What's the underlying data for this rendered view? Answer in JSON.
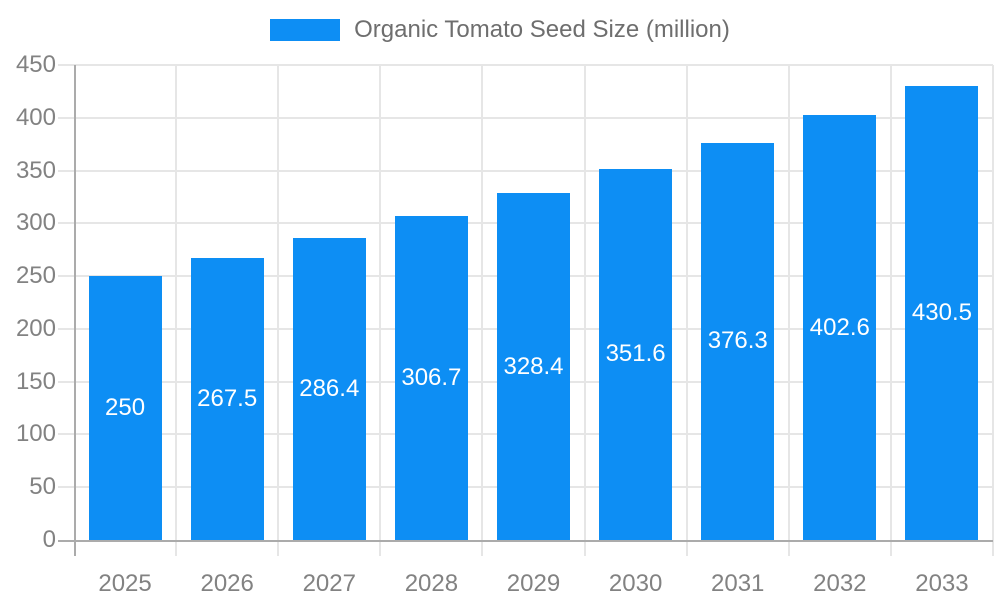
{
  "chart_data": {
    "type": "bar",
    "title": "Organic Tomato Seed Size (million)",
    "categories": [
      "2025",
      "2026",
      "2027",
      "2028",
      "2029",
      "2030",
      "2031",
      "2032",
      "2033"
    ],
    "values": [
      250,
      267.5,
      286.4,
      306.7,
      328.4,
      351.6,
      376.3,
      402.6,
      430.5
    ],
    "value_labels": [
      "250",
      "267.5",
      "286.4",
      "306.7",
      "328.4",
      "351.6",
      "376.3",
      "402.6",
      "430.5"
    ],
    "xlabel": "",
    "ylabel": "",
    "ylim": [
      0,
      450
    ],
    "ytick_step": 50,
    "grid": true,
    "legend_position": "top",
    "colors": {
      "bar": "#0d8ef4",
      "grid": "#e6e6e6",
      "axis": "#ababab",
      "tick_label": "#828282",
      "title": "#6e6e6e",
      "value_label": "#ffffff",
      "background": "#ffffff"
    }
  }
}
